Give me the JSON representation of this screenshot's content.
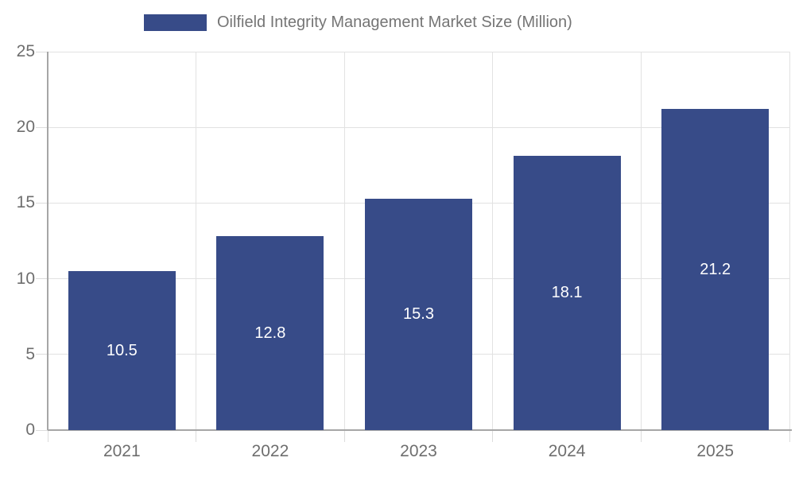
{
  "legend": {
    "label": "Oilfield Integrity Management Market Size (Million)"
  },
  "chart_data": {
    "type": "bar",
    "title": "Oilfield Integrity Management Market Size (Million)",
    "categories": [
      "2021",
      "2022",
      "2023",
      "2024",
      "2025"
    ],
    "values": [
      10.5,
      12.8,
      15.3,
      18.1,
      21.2
    ],
    "value_labels": [
      "10.5",
      "12.8",
      "15.3",
      "18.1",
      "21.2"
    ],
    "xlabel": "",
    "ylabel": "",
    "ylim": [
      0,
      25
    ],
    "yticks": [
      0,
      5,
      10,
      15,
      20,
      25
    ],
    "grid": "on",
    "legend_position": "top"
  },
  "colors": {
    "bar": "#374b88",
    "grid": "#e2e2e2",
    "tick": "#dcdcdc",
    "axis": "#a6a6a6",
    "axis_text": "#6e6e6e",
    "legend_text": "#757575",
    "value_text": "#ffffff"
  }
}
